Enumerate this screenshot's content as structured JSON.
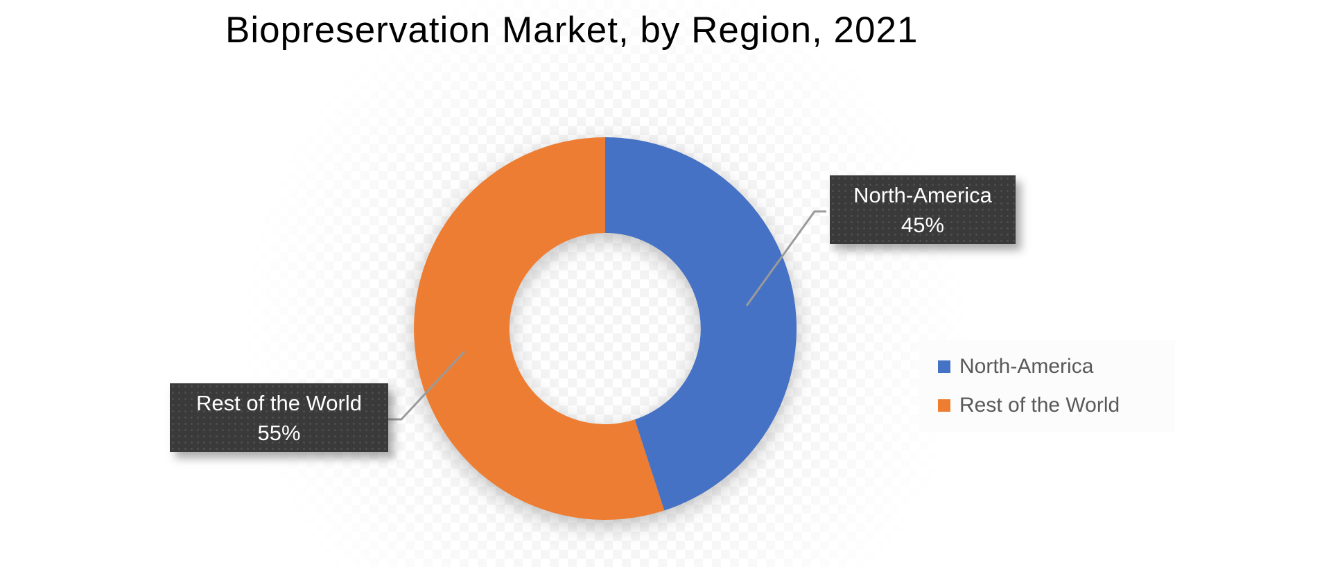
{
  "title": "Biopreservation Market, by Region, 2021",
  "chart_data": {
    "type": "pie",
    "subtype": "donut",
    "title": "Biopreservation Market, by Region, 2021",
    "labels": [
      "North-America",
      "Rest of the World"
    ],
    "values": [
      45,
      55
    ],
    "unit": "%",
    "colors": [
      "#4472C4",
      "#ED7D31"
    ],
    "start_angle_deg": 0,
    "direction": "clockwise",
    "inner_radius_ratio": 0.5,
    "legend_position": "right-middle",
    "data_labels": [
      {
        "label": "North-America",
        "value_text": "45%"
      },
      {
        "label": "Rest of the World",
        "value_text": "55%"
      }
    ]
  },
  "callouts": {
    "north_america": {
      "label": "North-America",
      "value_text": "45%"
    },
    "rest_of_world": {
      "label": "Rest of the World",
      "value_text": "55%"
    }
  },
  "legend": {
    "items": [
      {
        "label": "North-America",
        "color": "#4472C4"
      },
      {
        "label": "Rest of the World",
        "color": "#ED7D31"
      }
    ]
  },
  "colors": {
    "slice_blue": "#4472C4",
    "slice_orange": "#ED7D31",
    "callout_background": "#3A3A3A",
    "callout_text": "#FFFFFF",
    "leader_line": "#9A9A9A",
    "legend_text": "#595959",
    "title_text": "#000000"
  }
}
